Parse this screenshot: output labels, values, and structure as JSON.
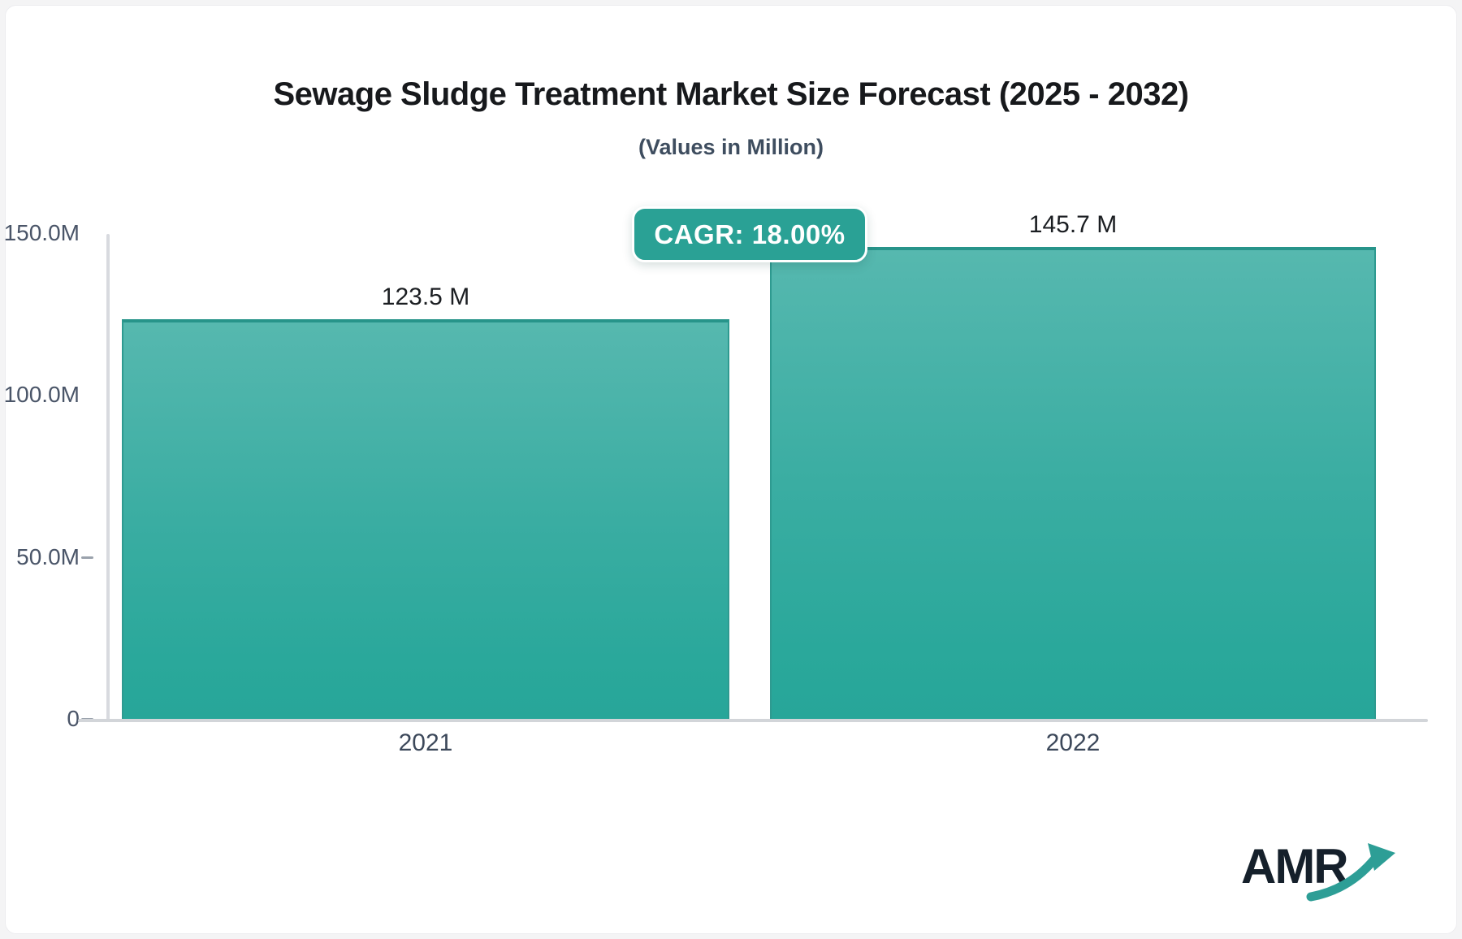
{
  "header": {
    "title": "Sewage Sludge Treatment Market Size Forecast (2025 - 2032)",
    "subtitle": "(Values in Million)"
  },
  "badge": {
    "label": "CAGR: 18.00%"
  },
  "chart_data": {
    "type": "bar",
    "title": "Sewage Sludge Treatment Market Size Forecast (2025 - 2032)",
    "subtitle": "(Values in Million)",
    "categories": [
      "2021",
      "2022"
    ],
    "values": [
      123.5,
      145.7
    ],
    "value_labels": [
      "123.5 M",
      "145.7 M"
    ],
    "unit": "Million",
    "xlabel": "",
    "ylabel": "",
    "ylim": [
      0,
      150
    ],
    "yticks": [
      {
        "label": "150.0M",
        "value": 150,
        "dash": false
      },
      {
        "label": "100.0M",
        "value": 100,
        "dash": false
      },
      {
        "label": "50.0M",
        "value": 50,
        "dash": true
      },
      {
        "label": "0",
        "value": 0,
        "dash": true
      }
    ],
    "grid": false,
    "legend": false,
    "annotations": [
      "CAGR: 18.00%"
    ]
  },
  "logo": {
    "text": "AMR"
  },
  "colors": {
    "bar_gradient_top": "#56b8af",
    "bar_gradient_bottom": "#27a699",
    "bar_border": "#27948a",
    "badge_bg": "#2aa195",
    "axis_line": "#d8dadf",
    "tick_label": "#4a5568",
    "title_text": "#17191c",
    "logo_text": "#15202b",
    "logo_arrow": "#2d9e96"
  }
}
